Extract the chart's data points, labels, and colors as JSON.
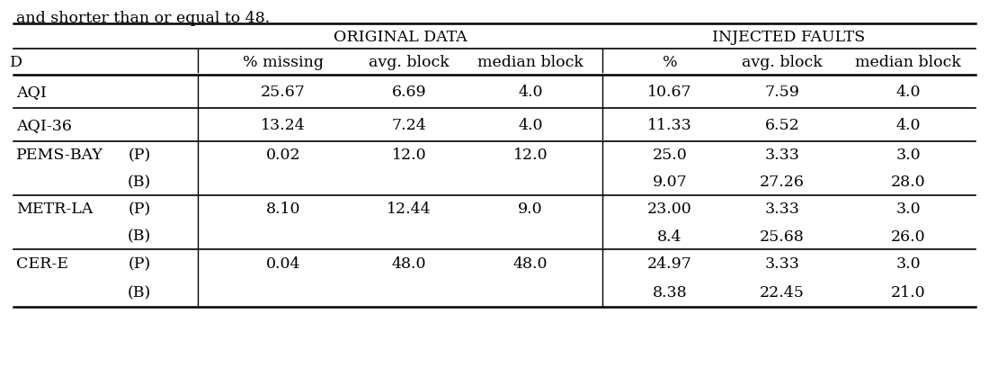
{
  "title": "and shorter than or equal to 48.",
  "header1": "ORIGINAL DATA",
  "header2": "INJECTED FAULTS",
  "col_headers_left": [
    "D",
    "",
    "% missing",
    "avg. block",
    "median block"
  ],
  "col_headers_right": [
    "%",
    "avg. block",
    "median block"
  ],
  "rows": [
    {
      "name": "AQI",
      "sub": [
        "",
        ""
      ],
      "orig": [
        "25.67",
        "6.69",
        "4.0"
      ],
      "inj": [
        [
          "10.67"
        ],
        [
          "7.59"
        ],
        [
          "4.0"
        ]
      ]
    },
    {
      "name": "AQI-36",
      "sub": [
        "",
        ""
      ],
      "orig": [
        "13.24",
        "7.24",
        "4.0"
      ],
      "inj": [
        [
          "11.33"
        ],
        [
          "6.52"
        ],
        [
          "4.0"
        ]
      ]
    },
    {
      "name": "PEMS-BAY",
      "sub": [
        "(P)",
        "(B)"
      ],
      "orig": [
        "0.02",
        "12.0",
        "12.0"
      ],
      "inj": [
        [
          "25.0",
          "9.07"
        ],
        [
          "3.33",
          "27.26"
        ],
        [
          "3.0",
          "28.0"
        ]
      ]
    },
    {
      "name": "METR-LA",
      "sub": [
        "(P)",
        "(B)"
      ],
      "orig": [
        "8.10",
        "12.44",
        "9.0"
      ],
      "inj": [
        [
          "23.00",
          "8.4"
        ],
        [
          "3.33",
          "25.68"
        ],
        [
          "3.0",
          "26.0"
        ]
      ]
    },
    {
      "name": "CER-E",
      "sub": [
        "(P)",
        "(B)"
      ],
      "orig": [
        "0.04",
        "48.0",
        "48.0"
      ],
      "inj": [
        [
          "24.97",
          "8.38"
        ],
        [
          "3.33",
          "22.45"
        ],
        [
          "3.0",
          "21.0"
        ]
      ]
    }
  ],
  "bg_color": "#ffffff",
  "text_color": "#000000",
  "line_color": "#000000"
}
